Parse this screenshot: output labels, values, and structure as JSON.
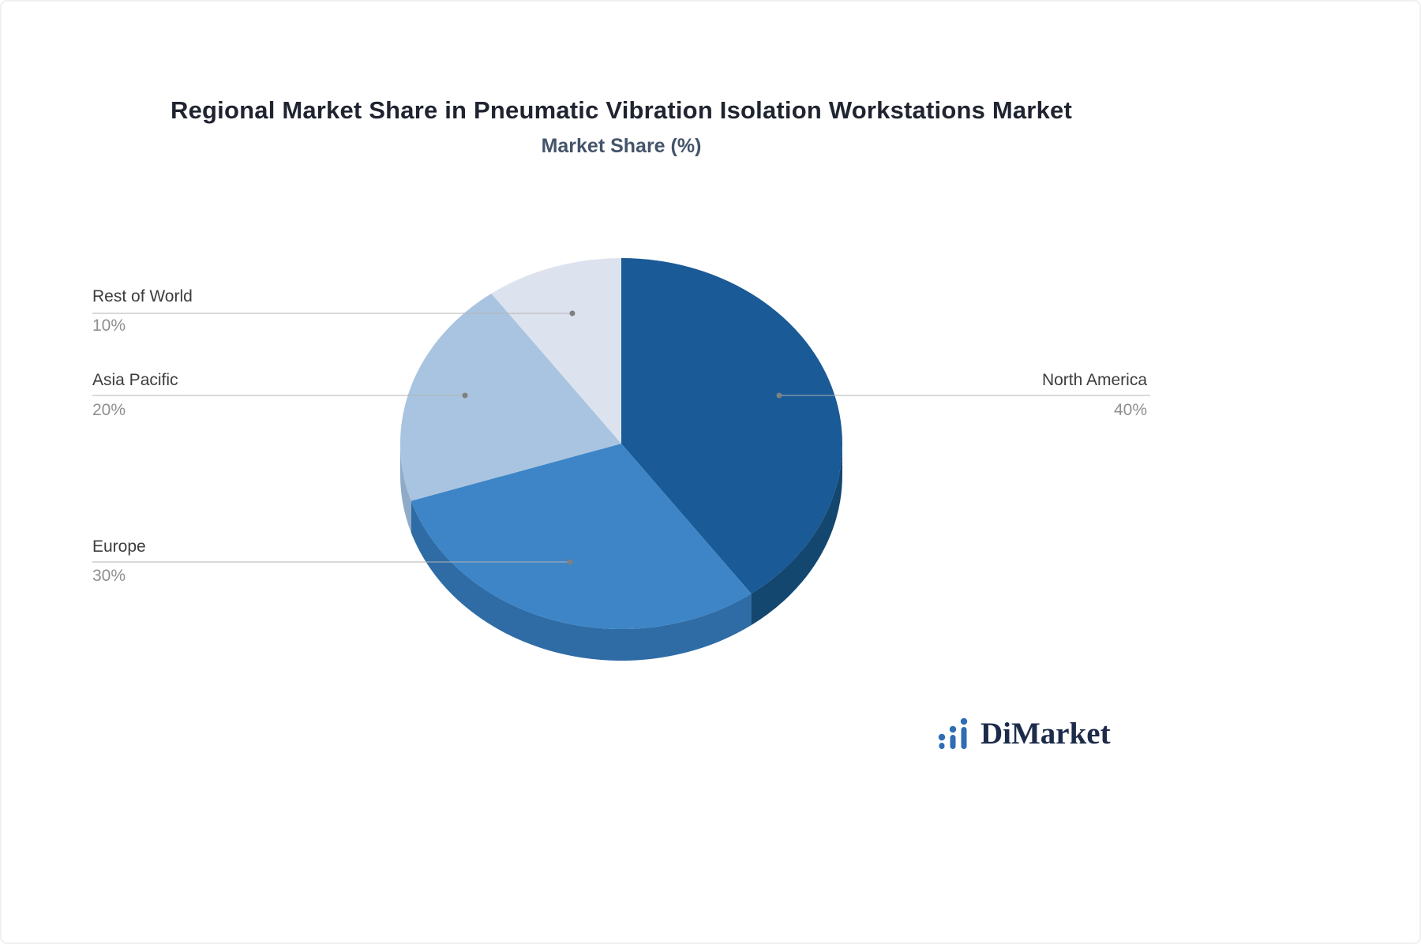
{
  "page": {
    "background": "#ffffff"
  },
  "chart_data": {
    "type": "pie",
    "style": "3d-pie-with-leader-line-callouts",
    "title": "Regional Market Share in Pneumatic Vibration Isolation Workstations Market",
    "subtitle": "Market Share (%)",
    "unit": "%",
    "labels": [
      "North America",
      "Europe",
      "Asia Pacific",
      "Rest of World"
    ],
    "values": [
      40,
      30,
      20,
      10
    ],
    "value_labels": [
      "40%",
      "30%",
      "20%",
      "10%"
    ],
    "colors": [
      "#1a5a96",
      "#3d85c6",
      "#a9c4e0",
      "#dde3ee"
    ],
    "side_colors": [
      "#134770",
      "#2f6ca6",
      "#8fabc8",
      "#c4cedd"
    ],
    "start_angle_deg": -90,
    "direction": "clockwise",
    "legend": "none",
    "leader_line_color": "#b3b3b3",
    "leader_dot_color": "#808080"
  },
  "branding": {
    "logo_text": "DiMarket",
    "logo_icon": "bar-chart-trend-icon",
    "logo_icon_color": "#2f6eb4",
    "logo_text_color": "#1d2b4a"
  },
  "text_colors": {
    "title": "#1f2430",
    "subtitle": "#44546a",
    "label": "#3d3d3d",
    "value": "#8f8f8f"
  }
}
